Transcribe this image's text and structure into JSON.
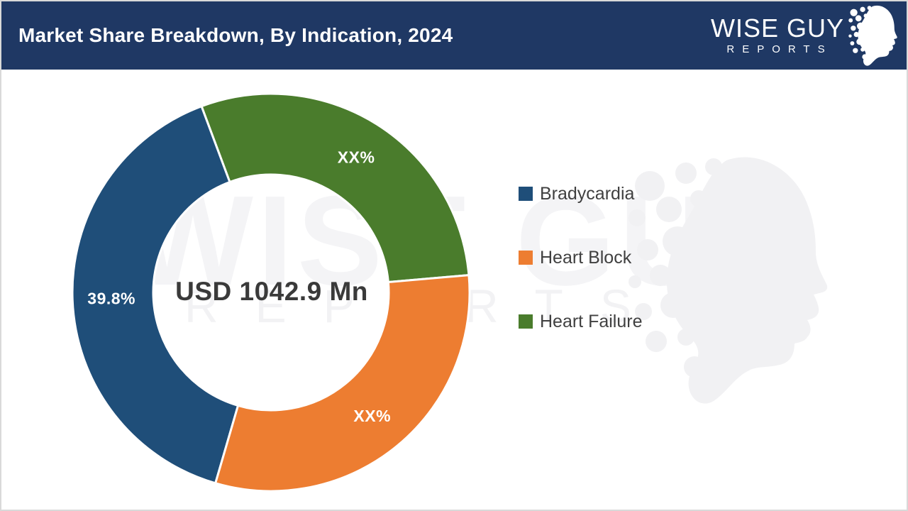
{
  "header": {
    "title": "Market Share Breakdown, By Indication, 2024",
    "bg_color": "#1f3864",
    "logo": {
      "line1": "WISE GUY",
      "line2": "REPORTS",
      "icon": "face-dots-profile-icon"
    }
  },
  "watermark": {
    "line1": "WISE GUY",
    "line2": "REPORTS",
    "icon": "face-dots-profile-icon"
  },
  "chart_data": {
    "type": "pie",
    "subtype": "donut",
    "title": "Market Share Breakdown, By Indication, 2024",
    "center_label": "USD 1042.9 Mn",
    "unit": "percent of market share",
    "start_angle_deg": 5,
    "direction": "counterclockwise",
    "slices": [
      {
        "label": "Heart Failure",
        "value_pct": 29.3,
        "display_label": "XX%",
        "color": "#4a7c2c"
      },
      {
        "label": "Bradycardia",
        "value_pct": 39.8,
        "display_label": "39.8%",
        "color": "#1f4e79"
      },
      {
        "label": "Heart Block",
        "value_pct": 30.9,
        "display_label": "XX%",
        "color": "#ed7d31"
      }
    ],
    "legend": [
      {
        "label": "Bradycardia",
        "color": "#1f4e79"
      },
      {
        "label": "Heart Block",
        "color": "#ed7d31"
      },
      {
        "label": "Heart Failure",
        "color": "#4a7c2c"
      }
    ],
    "legend_position": "right"
  }
}
